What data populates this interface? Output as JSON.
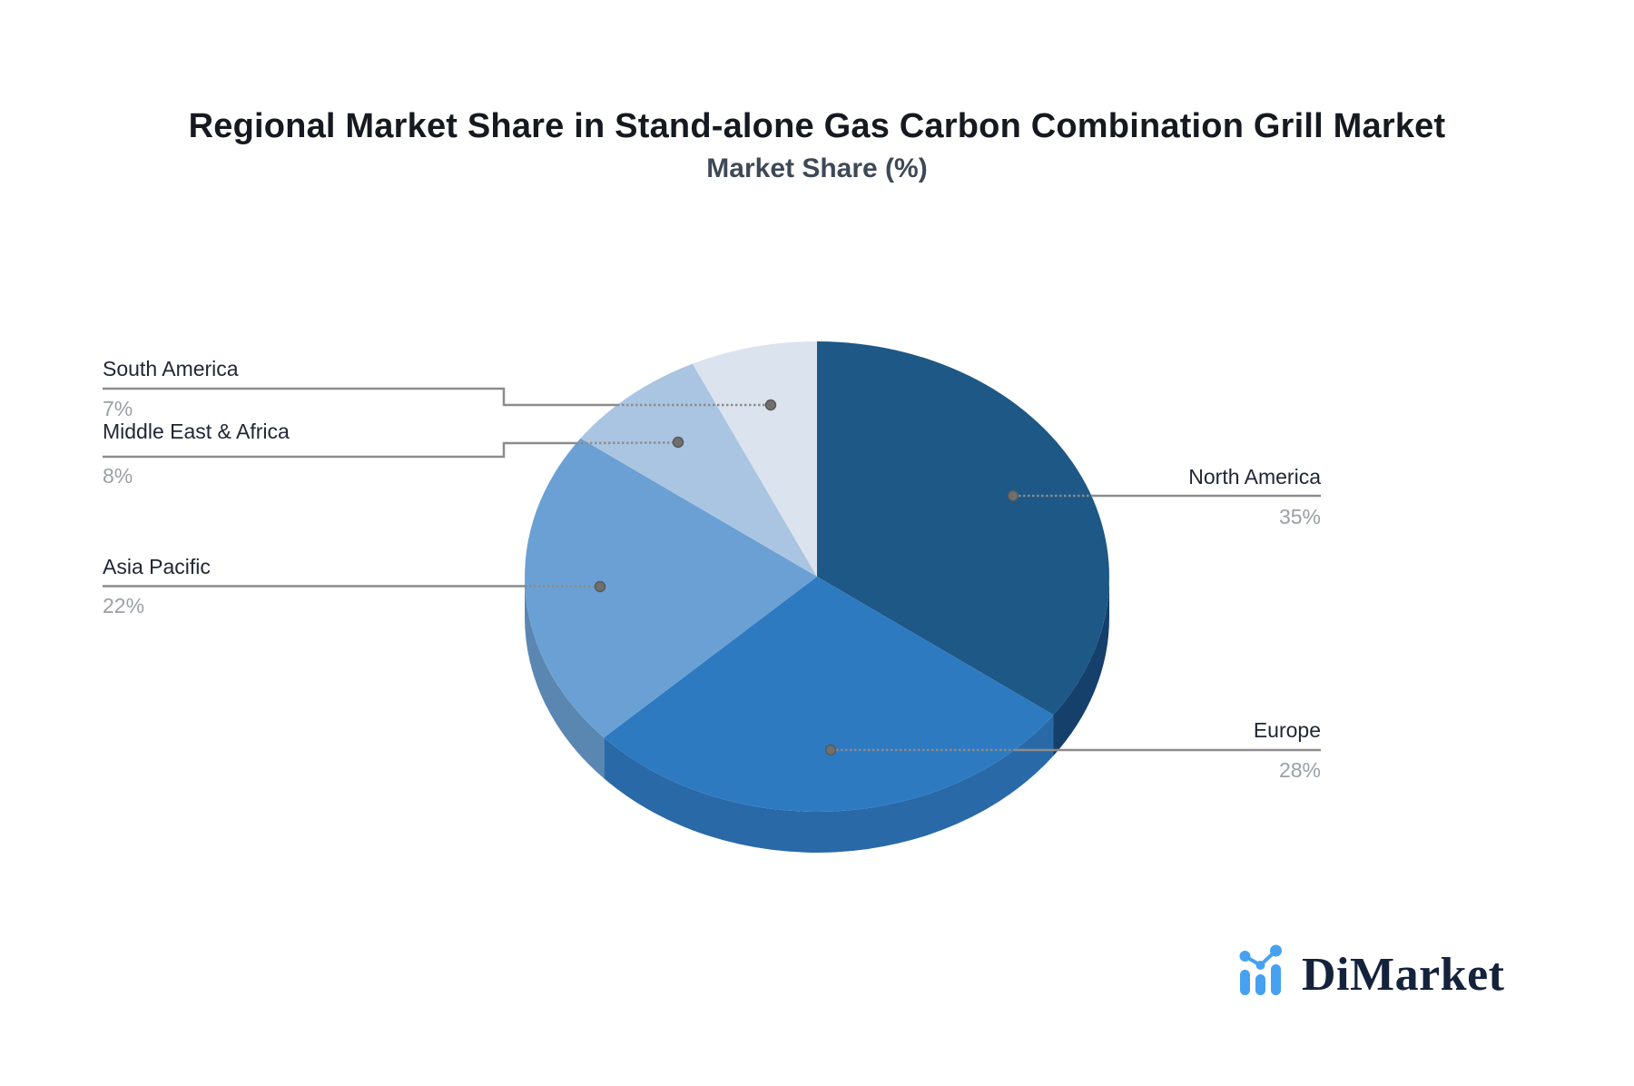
{
  "chart_data": {
    "type": "pie",
    "style": "3d",
    "title": "Regional Market Share in Stand-alone Gas Carbon Combination Grill Market",
    "subtitle": "Market Share (%)",
    "unit": "%",
    "legend_position": "callout-labels",
    "slices": [
      {
        "label": "North America",
        "value": 35,
        "value_text": "35%",
        "color": "#1d5886",
        "side_color": "#15406b"
      },
      {
        "label": "Europe",
        "value": 28,
        "value_text": "28%",
        "color": "#2e7ac1",
        "side_color": "#2969a8"
      },
      {
        "label": "Asia Pacific",
        "value": 22,
        "value_text": "22%",
        "color": "#6ba0d4",
        "side_color": "#5a87b1"
      },
      {
        "label": "Middle East & Africa",
        "value": 8,
        "value_text": "8%",
        "color": "#aac5e2",
        "side_color": "#8fb0d2"
      },
      {
        "label": "South America",
        "value": 7,
        "value_text": "7%",
        "color": "#dbe3ee",
        "side_color": "#c3cfdf"
      }
    ],
    "callout_style": {
      "line_color": "#8c8c8c",
      "dot_fill": "#6f6f6f",
      "dot_stroke": "#595959",
      "label_color": "#212733",
      "value_color": "#9aa0a6"
    }
  },
  "branding": {
    "logo_text": "DiMarket",
    "logo_icon": "bar-chart-trend-icon",
    "logo_bar_color": "#47a1f1",
    "logo_text_color": "#14223c"
  }
}
